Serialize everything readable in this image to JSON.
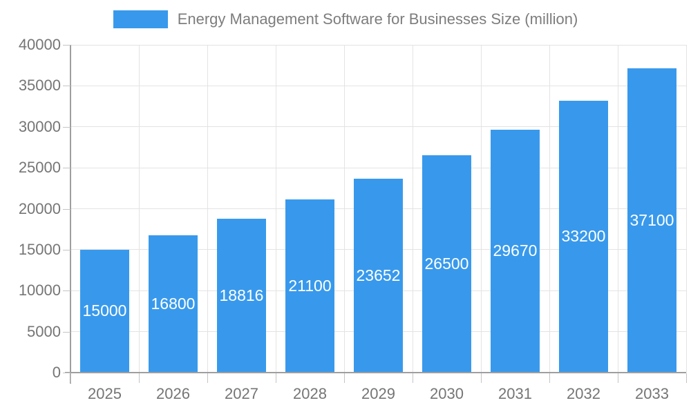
{
  "legend": {
    "label": "Energy Management Software for Businesses Size (million)"
  },
  "chart_data": {
    "type": "bar",
    "title": "Energy Management Software for Businesses Size (million)",
    "series_name": "Energy Management Software for Businesses Size (million)",
    "categories": [
      "2025",
      "2026",
      "2027",
      "2028",
      "2029",
      "2030",
      "2031",
      "2032",
      "2033"
    ],
    "values": [
      15000,
      16800,
      18816,
      21100,
      23652,
      26500,
      29670,
      33200,
      37100
    ],
    "xlabel": "",
    "ylabel": "",
    "ylim": [
      0,
      40000
    ],
    "ytick_step": 5000,
    "ytick_labels": [
      "0",
      "5000",
      "10000",
      "15000",
      "20000",
      "25000",
      "30000",
      "35000",
      "40000"
    ],
    "grid": true,
    "legend_position": "top",
    "value_label_position": "inside-center",
    "colors": {
      "bar": "#3899ec",
      "grid": "#e3e3e3",
      "axis": "#9e9e9e",
      "tick": "#c4c4c4",
      "tick_text": "#757575",
      "value_text": "#ffffff",
      "legend_text": "#7d7d7d",
      "background": "#ffffff"
    }
  }
}
